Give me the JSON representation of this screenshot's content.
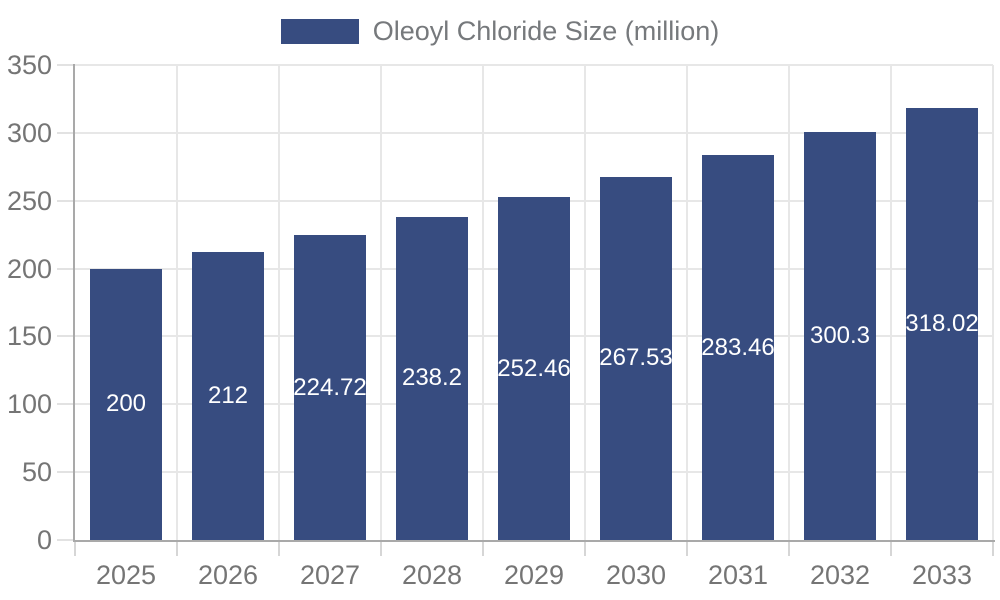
{
  "legend": {
    "items": [
      {
        "label": "Oleoyl Chloride Size (million)",
        "color": "#374c80"
      }
    ]
  },
  "chart_data": {
    "type": "bar",
    "title": "Oleoyl Chloride Size (million)",
    "categories": [
      "2025",
      "2026",
      "2027",
      "2028",
      "2029",
      "2030",
      "2031",
      "2032",
      "2033"
    ],
    "values": [
      200,
      212,
      224.72,
      238.2,
      252.46,
      267.53,
      283.46,
      300.3,
      318.02
    ],
    "value_labels": [
      "200",
      "212",
      "224.72",
      "238.2",
      "252.46",
      "267.53",
      "283.46",
      "300.3",
      "318.02"
    ],
    "xlabel": "",
    "ylabel": "",
    "ylim": [
      0,
      350
    ],
    "yticks": [
      0,
      50,
      100,
      150,
      200,
      250,
      300,
      350
    ],
    "grid": true,
    "legend_position": "top-center",
    "colors": {
      "bar": "#374c80",
      "value_label": "#ffffff",
      "axis_text": "#757575",
      "grid_line": "#e7e7e7",
      "axis_line": "#a9a9a9",
      "background": "#ffffff"
    }
  }
}
